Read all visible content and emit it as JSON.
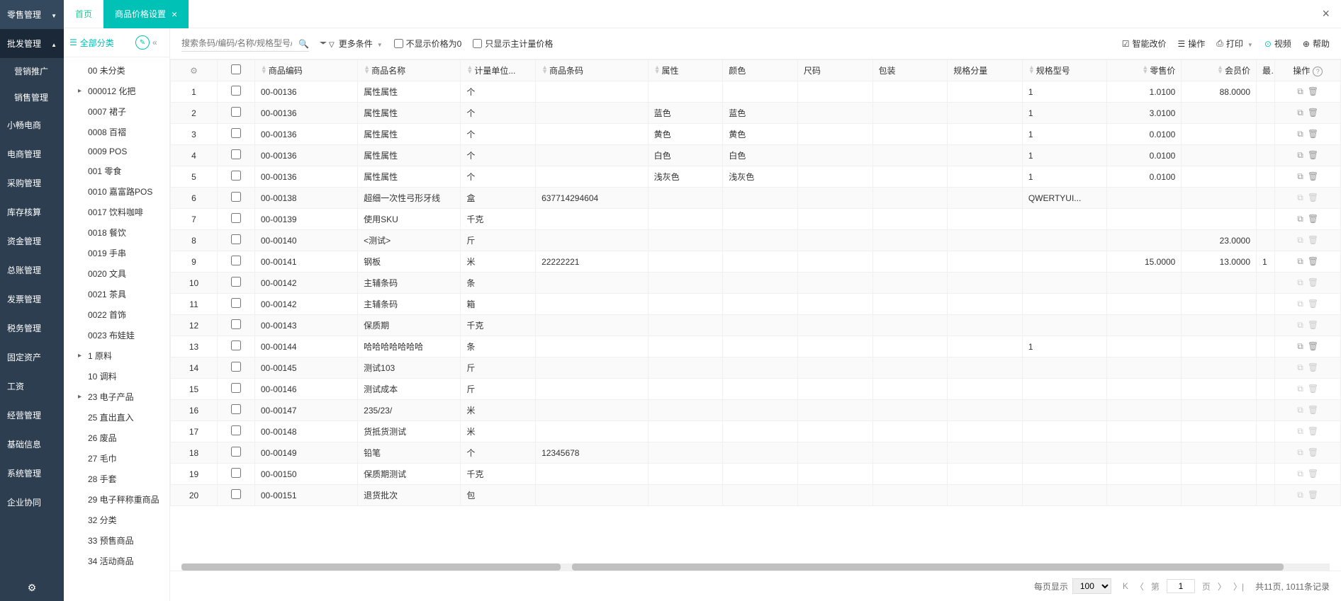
{
  "sidebar": {
    "items": [
      {
        "label": "零售管理",
        "hasSub": true,
        "arrow": "down"
      },
      {
        "label": "批发管理",
        "hasSub": true,
        "arrow": "up",
        "expanded": true,
        "subs": [
          {
            "label": "营销推广"
          },
          {
            "label": "销售管理"
          }
        ]
      },
      {
        "label": "小畅电商"
      },
      {
        "label": "电商管理"
      },
      {
        "label": "采购管理"
      },
      {
        "label": "库存核算"
      },
      {
        "label": "资金管理"
      },
      {
        "label": "总账管理"
      },
      {
        "label": "发票管理"
      },
      {
        "label": "税务管理"
      },
      {
        "label": "固定资产"
      },
      {
        "label": "工资"
      },
      {
        "label": "经营管理"
      },
      {
        "label": "基础信息"
      },
      {
        "label": "系统管理"
      },
      {
        "label": "企业协同"
      }
    ]
  },
  "tabs": {
    "home": "首页",
    "active": "商品价格设置"
  },
  "tree": {
    "header": "全部分类",
    "nodes": [
      {
        "label": "00 未分类",
        "indent": 1
      },
      {
        "label": "000012 化把",
        "indent": 1,
        "caret": true
      },
      {
        "label": "0007 裙子",
        "indent": 1
      },
      {
        "label": "0008 百褶",
        "indent": 1
      },
      {
        "label": "0009 POS",
        "indent": 1
      },
      {
        "label": "001 零食",
        "indent": 1
      },
      {
        "label": "0010 嘉富路POS",
        "indent": 1
      },
      {
        "label": "0017 饮料咖啡",
        "indent": 1
      },
      {
        "label": "0018 餐饮",
        "indent": 1
      },
      {
        "label": "0019 手串",
        "indent": 1
      },
      {
        "label": "0020 文具",
        "indent": 1
      },
      {
        "label": "0021 茶具",
        "indent": 1
      },
      {
        "label": "0022 首饰",
        "indent": 1
      },
      {
        "label": "0023 布娃娃",
        "indent": 1
      },
      {
        "label": "1 原料",
        "indent": 1,
        "caret": true
      },
      {
        "label": "10 调料",
        "indent": 1
      },
      {
        "label": "23 电子产品",
        "indent": 1,
        "caret": true
      },
      {
        "label": "25 直出直入",
        "indent": 1
      },
      {
        "label": "26 废品",
        "indent": 1
      },
      {
        "label": "27 毛巾",
        "indent": 1
      },
      {
        "label": "28 手套",
        "indent": 1
      },
      {
        "label": "29 电子秤称重商品",
        "indent": 1
      },
      {
        "label": "32 分类",
        "indent": 1
      },
      {
        "label": "33 预售商品",
        "indent": 1
      },
      {
        "label": "34 活动商品",
        "indent": 1
      }
    ]
  },
  "toolbar": {
    "searchPlaceholder": "搜索条码/编码/名称/规格型号/别名",
    "moreFilters": "更多条件",
    "hideZero": "不显示价格为0",
    "onlyMain": "只显示主计量价格",
    "smartEdit": "智能改价",
    "operate": "操作",
    "print": "打印",
    "video": "视频",
    "help": "帮助"
  },
  "table": {
    "headers": {
      "code": "商品编码",
      "name": "商品名称",
      "unit": "计量单位...",
      "barcode": "商品条码",
      "attr": "属性",
      "color": "颜色",
      "size": "尺码",
      "pack": "包装",
      "specAmt": "规格分量",
      "spec": "规格型号",
      "retail": "零售价",
      "member": "会员价",
      "extra": "最",
      "ops": "操作"
    },
    "rows": [
      {
        "n": 1,
        "code": "00-00136",
        "name": "属性属性",
        "unit": "个",
        "barcode": "",
        "attr": "",
        "color": "",
        "spec": "1",
        "retail": "1.0100",
        "member": "88.0000",
        "ops": "active"
      },
      {
        "n": 2,
        "code": "00-00136",
        "name": "属性属性",
        "unit": "个",
        "barcode": "",
        "attr": "蓝色",
        "color": "蓝色",
        "spec": "1",
        "retail": "3.0100",
        "member": "",
        "ops": "active"
      },
      {
        "n": 3,
        "code": "00-00136",
        "name": "属性属性",
        "unit": "个",
        "barcode": "",
        "attr": "黄色",
        "color": "黄色",
        "spec": "1",
        "retail": "0.0100",
        "member": "",
        "ops": "active"
      },
      {
        "n": 4,
        "code": "00-00136",
        "name": "属性属性",
        "unit": "个",
        "barcode": "",
        "attr": "白色",
        "color": "白色",
        "spec": "1",
        "retail": "0.0100",
        "member": "",
        "ops": "active"
      },
      {
        "n": 5,
        "code": "00-00136",
        "name": "属性属性",
        "unit": "个",
        "barcode": "",
        "attr": "浅灰色",
        "color": "浅灰色",
        "spec": "1",
        "retail": "0.0100",
        "member": "",
        "ops": "active"
      },
      {
        "n": 6,
        "code": "00-00138",
        "name": "超细一次性弓形牙线",
        "unit": "盒",
        "barcode": "637714294604",
        "attr": "",
        "color": "",
        "spec": "QWERTYUI...",
        "retail": "",
        "member": "",
        "ops": "disabled"
      },
      {
        "n": 7,
        "code": "00-00139",
        "name": "使用SKU",
        "unit": "千克",
        "barcode": "",
        "attr": "",
        "color": "",
        "spec": "",
        "retail": "",
        "member": "",
        "ops": "active"
      },
      {
        "n": 8,
        "code": "00-00140",
        "name": "<测试>",
        "unit": "斤",
        "barcode": "",
        "attr": "",
        "color": "",
        "spec": "",
        "retail": "",
        "member": "23.0000",
        "ops": "disabled"
      },
      {
        "n": 9,
        "code": "00-00141",
        "name": "钢板",
        "unit": "米",
        "barcode": "22222221",
        "attr": "",
        "color": "",
        "spec": "",
        "retail": "15.0000",
        "member": "13.0000",
        "extra": "1",
        "ops": "active"
      },
      {
        "n": 10,
        "code": "00-00142",
        "name": "主辅条码",
        "unit": "条",
        "barcode": "",
        "attr": "",
        "color": "",
        "spec": "",
        "retail": "",
        "member": "",
        "ops": "disabled"
      },
      {
        "n": 11,
        "code": "00-00142",
        "name": "主辅条码",
        "unit": "箱",
        "barcode": "",
        "attr": "",
        "color": "",
        "spec": "",
        "retail": "",
        "member": "",
        "ops": "disabled"
      },
      {
        "n": 12,
        "code": "00-00143",
        "name": "保质期",
        "unit": "千克",
        "barcode": "",
        "attr": "",
        "color": "",
        "spec": "",
        "retail": "",
        "member": "",
        "ops": "disabled"
      },
      {
        "n": 13,
        "code": "00-00144",
        "name": "哈哈哈哈哈哈哈",
        "unit": "条",
        "barcode": "",
        "attr": "",
        "color": "",
        "spec": "1",
        "retail": "",
        "member": "",
        "ops": "active"
      },
      {
        "n": 14,
        "code": "00-00145",
        "name": "测试103",
        "unit": "斤",
        "barcode": "",
        "attr": "",
        "color": "",
        "spec": "",
        "retail": "",
        "member": "",
        "ops": "disabled"
      },
      {
        "n": 15,
        "code": "00-00146",
        "name": "测试成本",
        "unit": "斤",
        "barcode": "",
        "attr": "",
        "color": "",
        "spec": "",
        "retail": "",
        "member": "",
        "ops": "disabled"
      },
      {
        "n": 16,
        "code": "00-00147",
        "name": "235/23/",
        "unit": "米",
        "barcode": "",
        "attr": "",
        "color": "",
        "spec": "",
        "retail": "",
        "member": "",
        "ops": "disabled"
      },
      {
        "n": 17,
        "code": "00-00148",
        "name": "货抵货测试",
        "unit": "米",
        "barcode": "",
        "attr": "",
        "color": "",
        "spec": "",
        "retail": "",
        "member": "",
        "ops": "disabled"
      },
      {
        "n": 18,
        "code": "00-00149",
        "name": "铅笔",
        "unit": "个",
        "barcode": "12345678",
        "attr": "",
        "color": "",
        "spec": "",
        "retail": "",
        "member": "",
        "ops": "disabled"
      },
      {
        "n": 19,
        "code": "00-00150",
        "name": "保质期测试",
        "unit": "千克",
        "barcode": "",
        "attr": "",
        "color": "",
        "spec": "",
        "retail": "",
        "member": "",
        "ops": "disabled"
      },
      {
        "n": 20,
        "code": "00-00151",
        "name": "退货批次",
        "unit": "包",
        "barcode": "",
        "attr": "",
        "color": "",
        "spec": "",
        "retail": "",
        "member": "",
        "ops": "disabled"
      }
    ]
  },
  "pagination": {
    "perPageLabel": "每页显示",
    "pageSize": "100",
    "pagePrefix": "第",
    "current": "1",
    "pageSuffix": "页",
    "summary": "共11页, 1011条记录"
  }
}
